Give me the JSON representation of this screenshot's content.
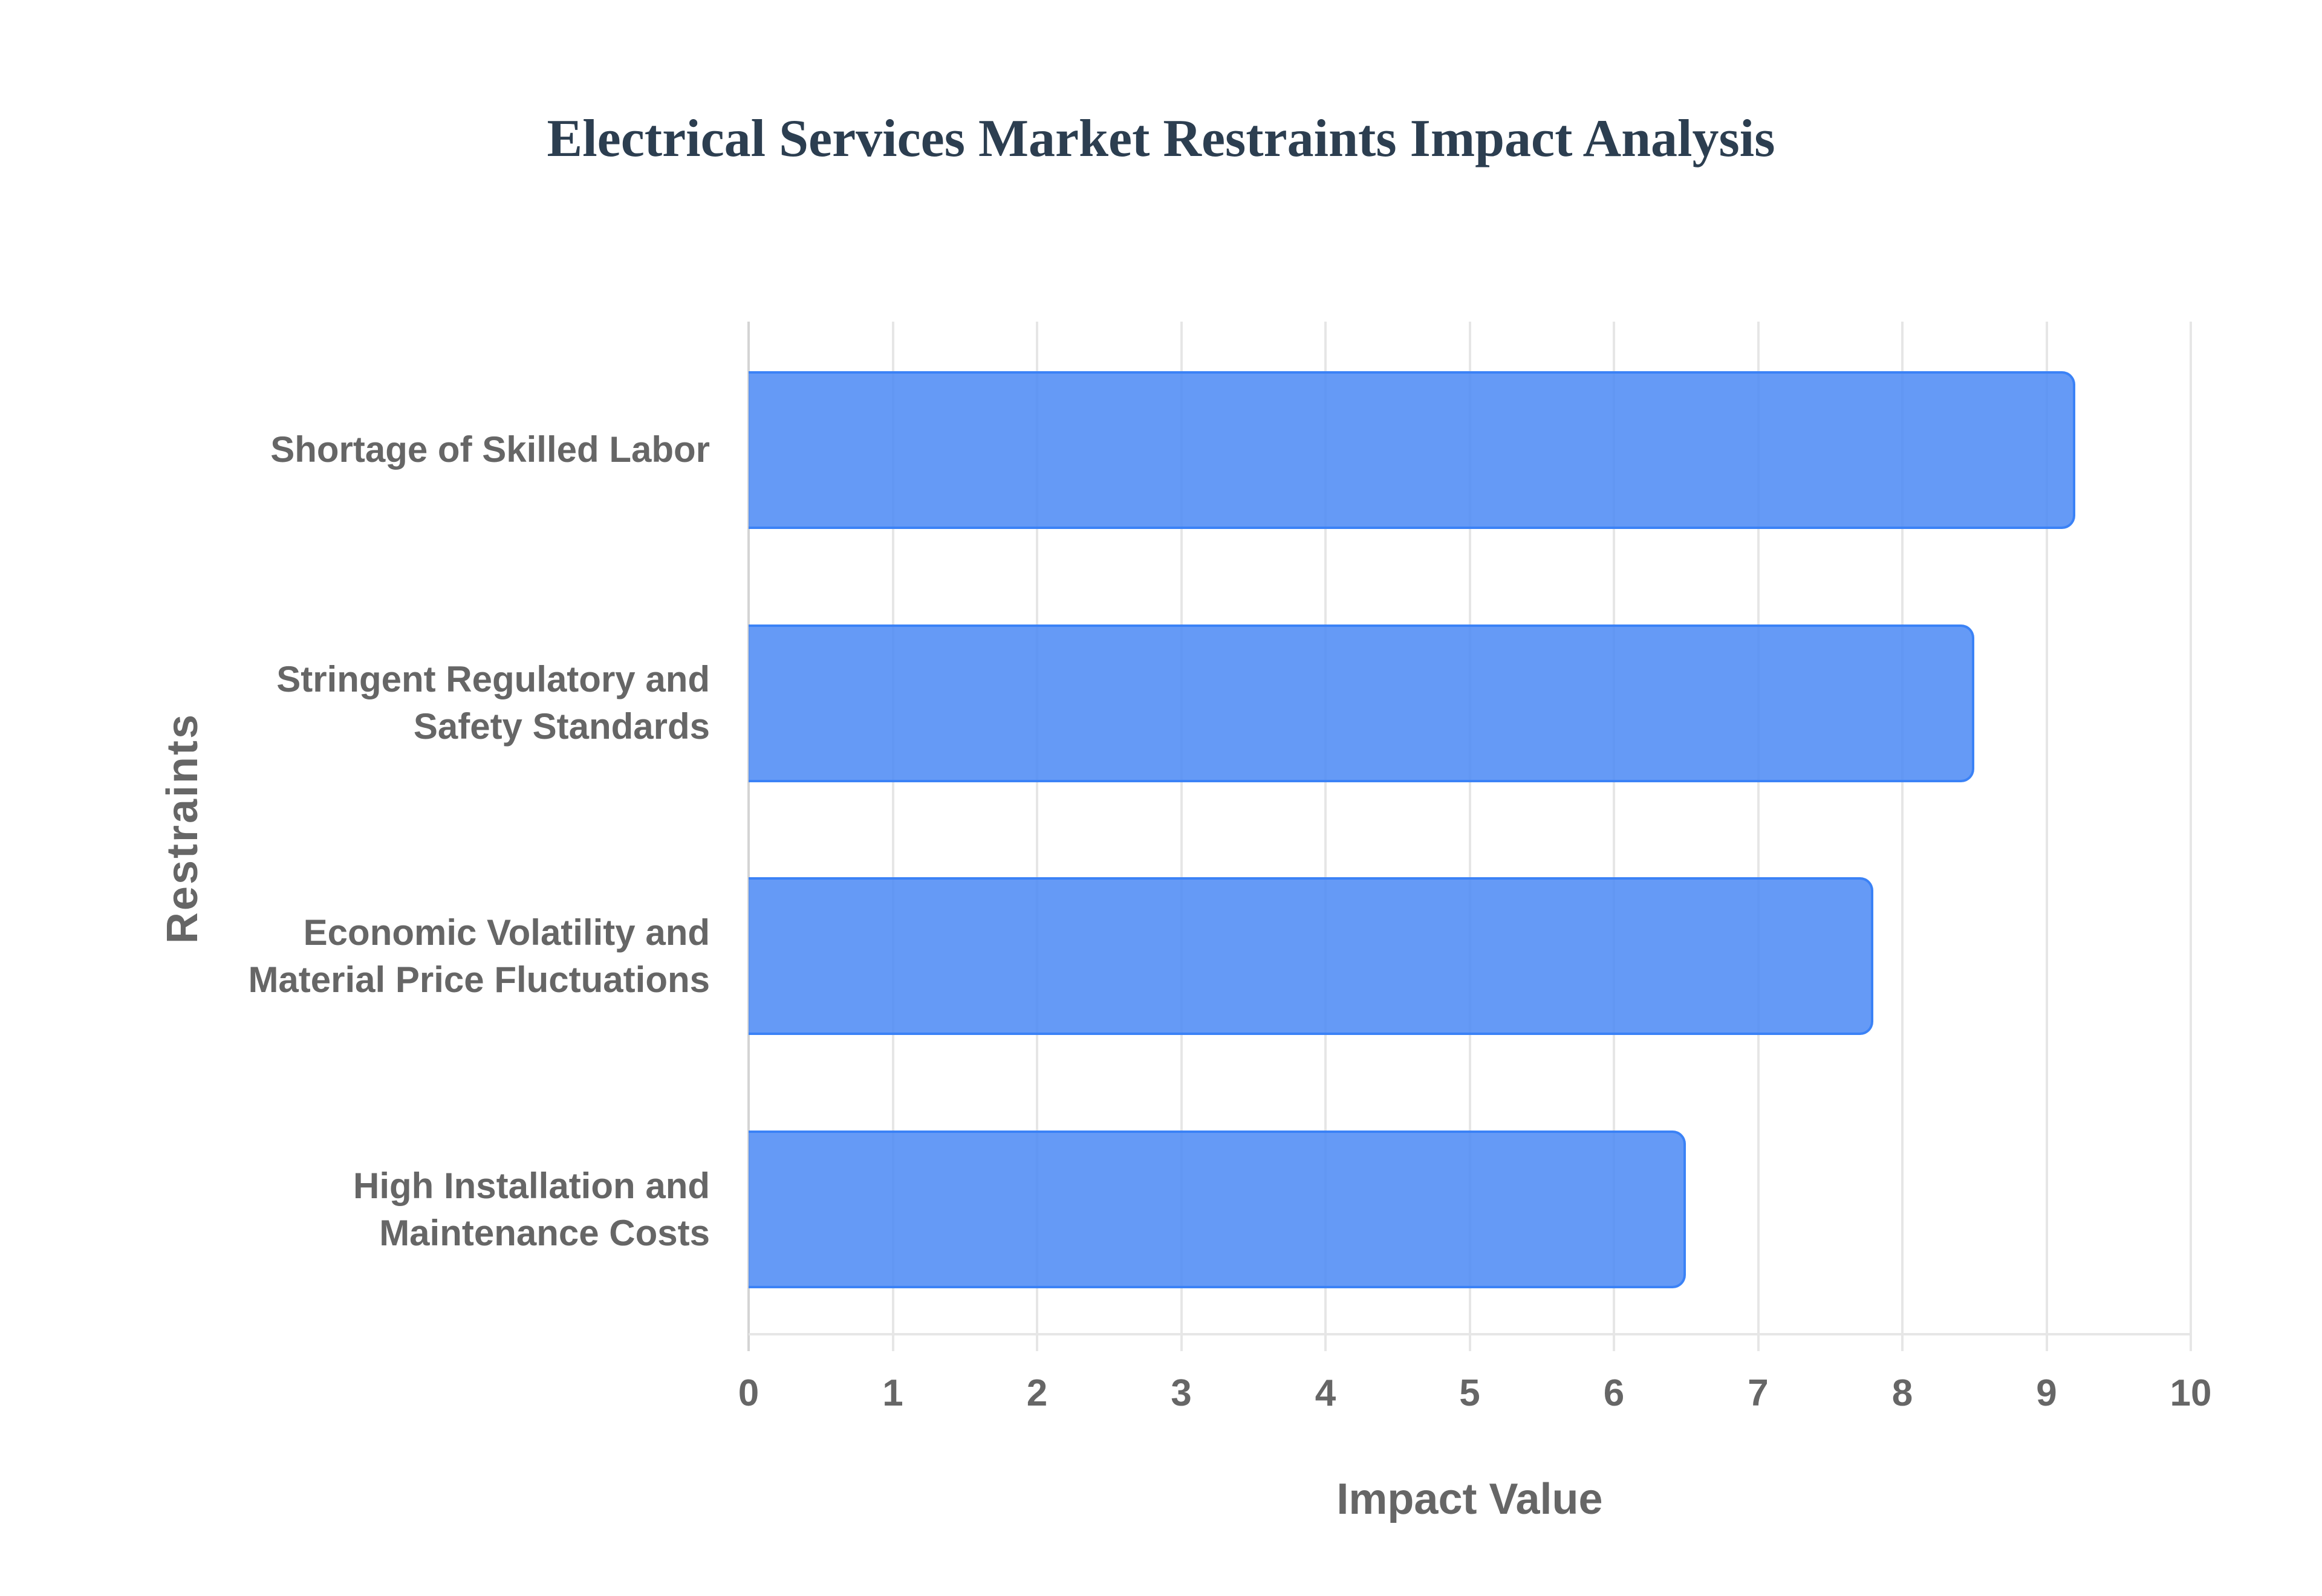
{
  "title": "Electrical Services Market Restraints Impact Analysis",
  "colors": {
    "title": "#2c3e50",
    "bar_fill": "#6499f5",
    "bar_border": "#3b82f6",
    "axis_text": "#666666",
    "grid": "#e6e6e6"
  },
  "axes": {
    "xlabel": "Impact Value",
    "ylabel": "Restraints",
    "xticks": [
      "0",
      "1",
      "2",
      "3",
      "4",
      "5",
      "6",
      "7",
      "8",
      "9",
      "10"
    ]
  },
  "categories": [
    "Shortage of Skilled Labor",
    "Stringent Regulatory and\nSafety Standards",
    "Economic Volatility and\nMaterial Price Fluctuations",
    "High Installation and\nMaintenance Costs"
  ],
  "chart_data": {
    "type": "bar",
    "orientation": "horizontal",
    "title": "Electrical Services Market Restraints Impact Analysis",
    "xlabel": "Impact Value",
    "ylabel": "Restraints",
    "categories": [
      "Shortage of Skilled Labor",
      "Stringent Regulatory and Safety Standards",
      "Economic Volatility and Material Price Fluctuations",
      "High Installation and Maintenance Costs"
    ],
    "values": [
      9.2,
      8.5,
      7.8,
      6.5
    ],
    "xlim": [
      0,
      10
    ],
    "xticks": [
      0,
      1,
      2,
      3,
      4,
      5,
      6,
      7,
      8,
      9,
      10
    ],
    "grid": "vertical",
    "legend": "none",
    "bar_color": "#6499f5"
  }
}
